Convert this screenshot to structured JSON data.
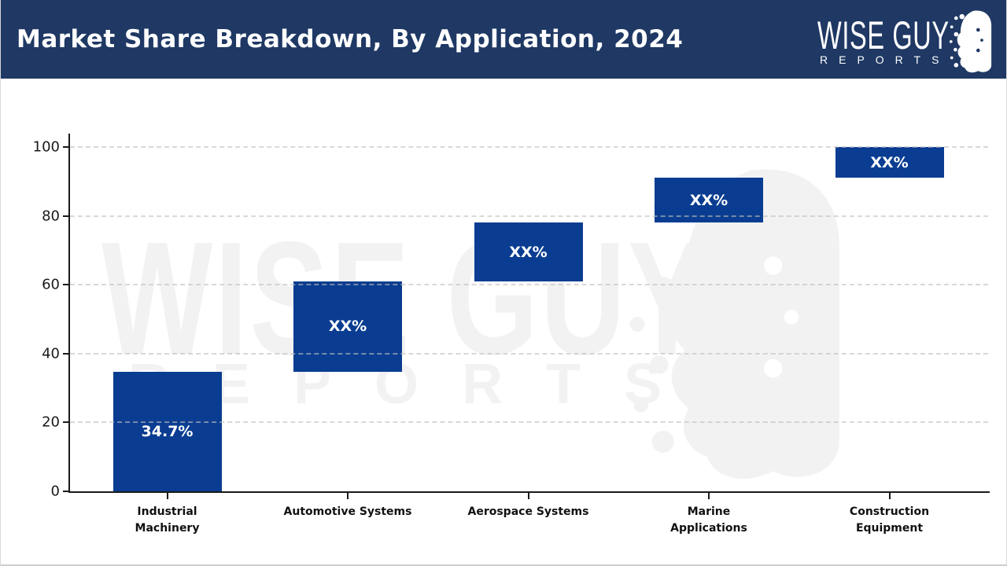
{
  "colors": {
    "header_bg": "#1f3864",
    "bar": "#0a3d91",
    "axis": "#1a1a1a",
    "grid": "#dedede",
    "bar_label_text": "#ffffff",
    "watermark": "#f2f2f2"
  },
  "header": {
    "title": "Market Share Breakdown, By Application, 2024",
    "logo": {
      "primary": "WISE GUY",
      "secondary": "REPORTS"
    }
  },
  "watermark": {
    "line1": "WISE GUY",
    "line2": "REPORTS"
  },
  "chart_data": {
    "type": "bar",
    "subtype": "waterfall",
    "title": "Market Share Breakdown, By Application, 2024",
    "xlabel": "",
    "ylabel": "",
    "ylim": [
      0,
      104
    ],
    "yticks": [
      0,
      20,
      40,
      60,
      80,
      100
    ],
    "grid": true,
    "gridline_style": "dashed",
    "legend": "none",
    "categories": [
      "Industrial Machinery",
      "Automotive Systems",
      "Aerospace Systems",
      "Marine Applications",
      "Construction Equipment"
    ],
    "segments": [
      {
        "category_lines": [
          "Industrial",
          "Machinery"
        ],
        "start": 0,
        "end": 34.7,
        "value": 34.7,
        "label": "34.7%"
      },
      {
        "category_lines": [
          "Automotive Systems"
        ],
        "start": 34.7,
        "end": 61,
        "value": 26.3,
        "label": "XX%"
      },
      {
        "category_lines": [
          "Aerospace Systems"
        ],
        "start": 61,
        "end": 78,
        "value": 17,
        "label": "XX%"
      },
      {
        "category_lines": [
          "Marine",
          "Applications"
        ],
        "start": 78,
        "end": 91,
        "value": 13,
        "label": "XX%"
      },
      {
        "category_lines": [
          "Construction",
          "Equipment"
        ],
        "start": 91,
        "end": 100,
        "value": 9,
        "label": "XX%"
      }
    ]
  }
}
